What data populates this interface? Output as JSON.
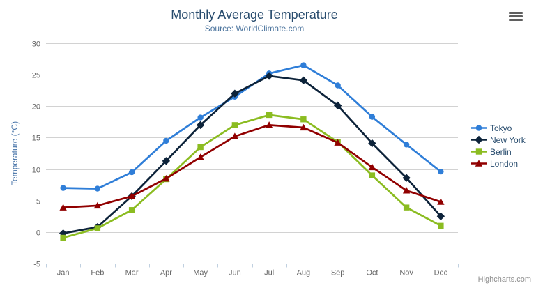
{
  "header": {
    "title": "Monthly Average Temperature",
    "subtitle": "Source: WorldClimate.com"
  },
  "credits_label": "Highcharts.com",
  "export_menu": {
    "icon": "hamburger-icon"
  },
  "chart_data": {
    "type": "line",
    "title": "Monthly Average Temperature",
    "subtitle": "Source: WorldClimate.com",
    "xlabel": "",
    "ylabel": "Temperature (°C)",
    "ylim": [
      -5,
      30
    ],
    "ytick_interval": 5,
    "yticks": [
      -5,
      0,
      5,
      10,
      15,
      20,
      25,
      30
    ],
    "grid": true,
    "legend_position": "right",
    "categories": [
      "Jan",
      "Feb",
      "Mar",
      "Apr",
      "May",
      "Jun",
      "Jul",
      "Aug",
      "Sep",
      "Oct",
      "Nov",
      "Dec"
    ],
    "series": [
      {
        "name": "Tokyo",
        "color": "#2f7ed8",
        "marker": "circle",
        "values": [
          7.0,
          6.9,
          9.5,
          14.5,
          18.2,
          21.5,
          25.2,
          26.5,
          23.3,
          18.3,
          13.9,
          9.6
        ]
      },
      {
        "name": "New York",
        "color": "#0d233a",
        "marker": "diamond",
        "values": [
          -0.2,
          0.8,
          5.7,
          11.3,
          17.0,
          22.0,
          24.8,
          24.1,
          20.1,
          14.1,
          8.6,
          2.5
        ]
      },
      {
        "name": "Berlin",
        "color": "#8bbc21",
        "marker": "square",
        "values": [
          -0.9,
          0.6,
          3.5,
          8.4,
          13.5,
          17.0,
          18.6,
          17.9,
          14.3,
          9.0,
          3.9,
          1.0
        ]
      },
      {
        "name": "London",
        "color": "#910000",
        "marker": "triangle",
        "values": [
          3.9,
          4.2,
          5.7,
          8.5,
          11.9,
          15.2,
          17.0,
          16.6,
          14.2,
          10.3,
          6.6,
          4.8
        ]
      }
    ],
    "style": {
      "title_color": "#274b6d",
      "subtitle_color": "#4d759e",
      "axis_label_color": "#666666",
      "axis_title_color": "#4572a7",
      "grid_color": "#d2d2d2",
      "axis_line_color": "#c0d0e0",
      "legend_text_color": "#274b6d",
      "credits_color": "#909090"
    }
  }
}
